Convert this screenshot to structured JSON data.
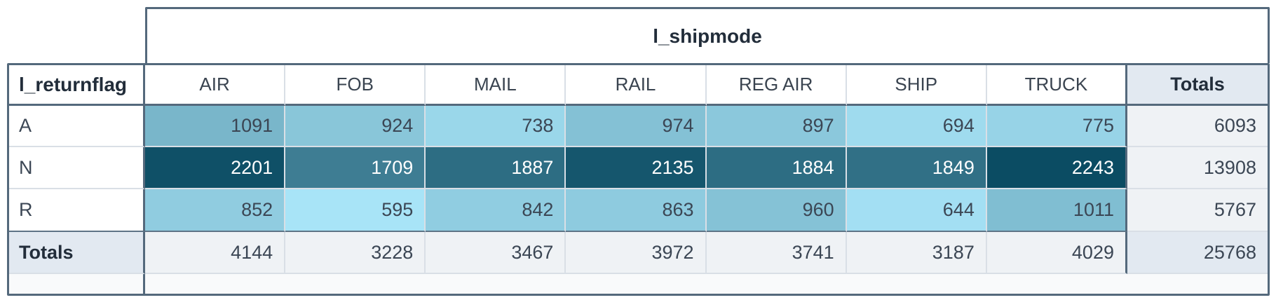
{
  "chart_data": {
    "type": "heatmap",
    "title": "",
    "column_field": "l_shipmode",
    "row_field": "l_returnflag",
    "totals_label": "Totals",
    "columns": [
      "AIR",
      "FOB",
      "MAIL",
      "RAIL",
      "REG AIR",
      "SHIP",
      "TRUCK"
    ],
    "rows": [
      "A",
      "N",
      "R"
    ],
    "values": [
      [
        1091,
        924,
        738,
        974,
        897,
        694,
        775
      ],
      [
        2201,
        1709,
        1887,
        2135,
        1884,
        1849,
        2243
      ],
      [
        852,
        595,
        842,
        863,
        960,
        644,
        1011
      ]
    ],
    "row_totals": [
      6093,
      13908,
      5767
    ],
    "column_totals": [
      4144,
      3228,
      3467,
      3972,
      3741,
      3187,
      4029
    ],
    "grand_total": 25768,
    "color_scale": {
      "min_value": 595,
      "max_value": 2243,
      "min_color": "#a8e4f7",
      "max_color": "#0b4c63",
      "white_text_above_t": 0.55
    },
    "legend_position": "none",
    "grid": true
  },
  "ui": {
    "colors": {
      "border_dark": "#54697c",
      "grid_light": "#d9dfe6",
      "r_row_divider": "#5e7486",
      "totals_header_bg": "#e2e9f1",
      "totals_cell_bg": "#eff2f5",
      "strip_bg": "#f9fafb",
      "header_text": "#222d3a",
      "colhead_text": "#3a4450",
      "cell_text": "#3b4654",
      "cell_text_inverse": "#ffffff"
    }
  }
}
